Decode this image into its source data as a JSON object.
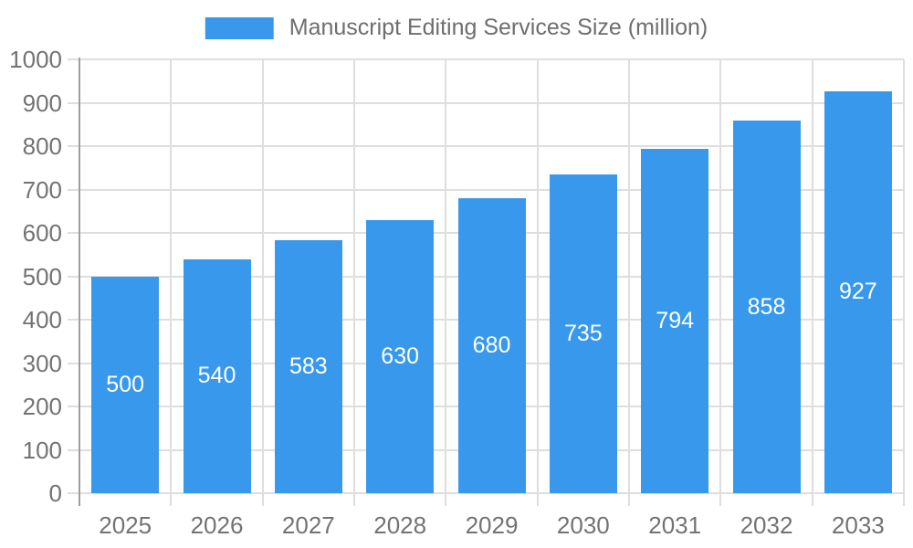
{
  "chart_data": {
    "type": "bar",
    "series_name": "Manuscript Editing Services Size (million)",
    "categories": [
      "2025",
      "2026",
      "2027",
      "2028",
      "2029",
      "2030",
      "2031",
      "2032",
      "2033"
    ],
    "values": [
      500,
      540,
      583,
      630,
      680,
      735,
      794,
      858,
      927
    ],
    "title": "",
    "xlabel": "",
    "ylabel": "",
    "ylim": [
      0,
      1000
    ],
    "ytick_step": 100,
    "ytick_labels": [
      "0",
      "100",
      "200",
      "300",
      "400",
      "500",
      "600",
      "700",
      "800",
      "900",
      "1000"
    ],
    "legend_position": "top-center",
    "grid": "horizontal and vertical category boundaries",
    "bar_value_labels": "white, centered inside bars",
    "colors": {
      "bar": "#3899EC",
      "grid": "#DEDEDE",
      "axis_line": "#9E9E9E",
      "tick_label": "#737373",
      "legend_text": "#6E6E6E",
      "bar_label": "#FFFFFF",
      "background": "#FFFFFF"
    }
  }
}
